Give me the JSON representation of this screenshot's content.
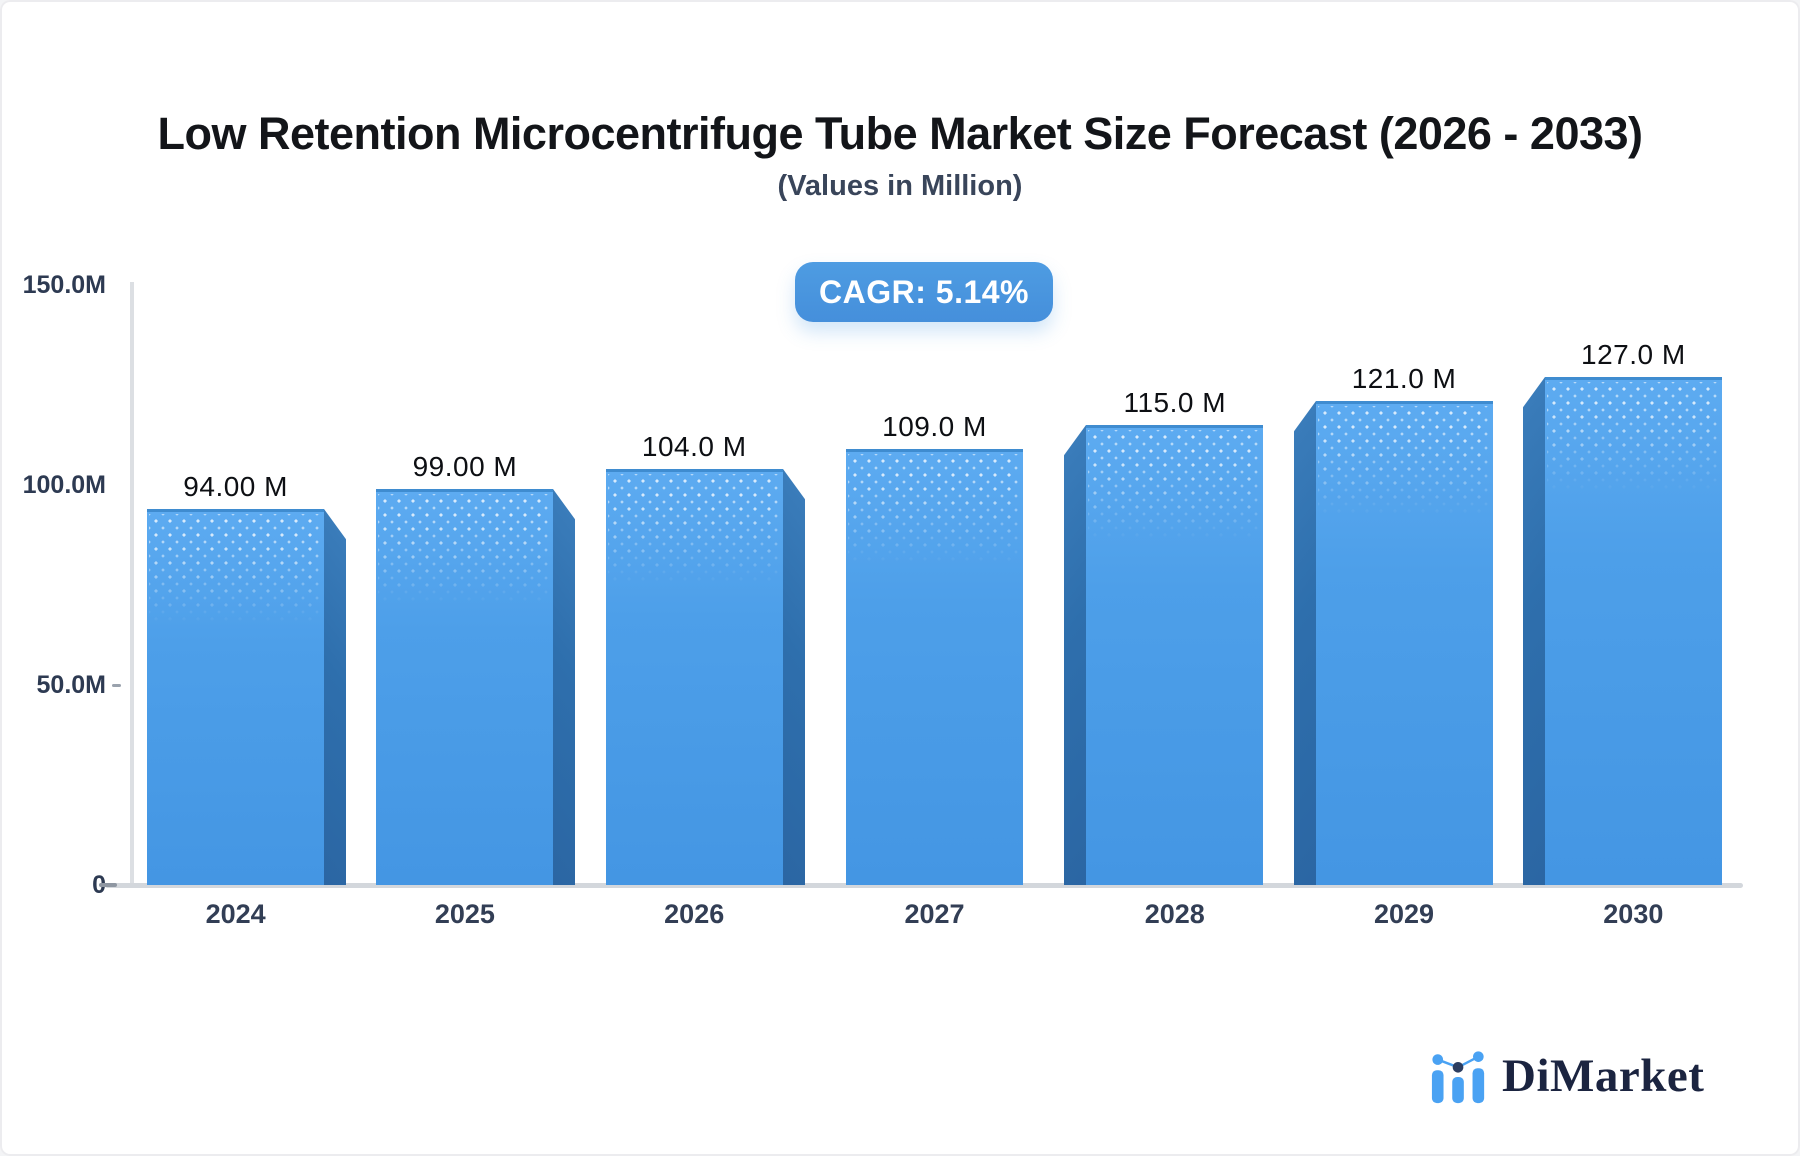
{
  "header": {
    "title": "Low Retention Microcentrifuge Tube Market Size Forecast (2026 - 2033)",
    "subtitle": "(Values in Million)",
    "cagr_label": "CAGR: 5.14%"
  },
  "brand": {
    "name": "DiMarket",
    "logo_icon": "bar-chart-with-dots-icon"
  },
  "colors": {
    "bar_face": "#4d9fe9",
    "bar_face_top": "#5dabf1",
    "bar_side_3d": "#2e6fad",
    "badge_blue": "#4892dd",
    "badge_lip_blue": "#74b0ec",
    "axis_gray": "#d3d7dc",
    "title_text": "#131519",
    "axis_label_text": "#2d3a52",
    "brand_navy": "#1b2440",
    "logo_blue": "#4aa2f3"
  },
  "chart_data": {
    "type": "bar",
    "title": "Low Retention Microcentrifuge Tube Market Size Forecast (2026 - 2033)",
    "subtitle": "(Values in Million)",
    "annotation": "CAGR: 5.14%",
    "categories": [
      "2024",
      "2025",
      "2026",
      "2027",
      "2028",
      "2029",
      "2030"
    ],
    "values": [
      94,
      99,
      104,
      109,
      115,
      121,
      127
    ],
    "value_labels": [
      "94.00 M",
      "99.00 M",
      "104.0 M",
      "109.0 M",
      "115.0 M",
      "121.0 M",
      "127.0 M"
    ],
    "unit": "Million",
    "xlabel": "",
    "ylabel": "",
    "ylim": [
      0,
      150
    ],
    "yticks": [
      {
        "value": 150,
        "label": "150.0M",
        "tick": "none"
      },
      {
        "value": 100,
        "label": "100.0M",
        "tick": "none"
      },
      {
        "value": 50,
        "label": "50.0M",
        "tick": "short"
      },
      {
        "value": 0,
        "label": "0",
        "tick": "long"
      }
    ],
    "grid": false,
    "legend": false,
    "style": "3d-column, halftone dot texture, depth faces toward center vanishing point"
  }
}
